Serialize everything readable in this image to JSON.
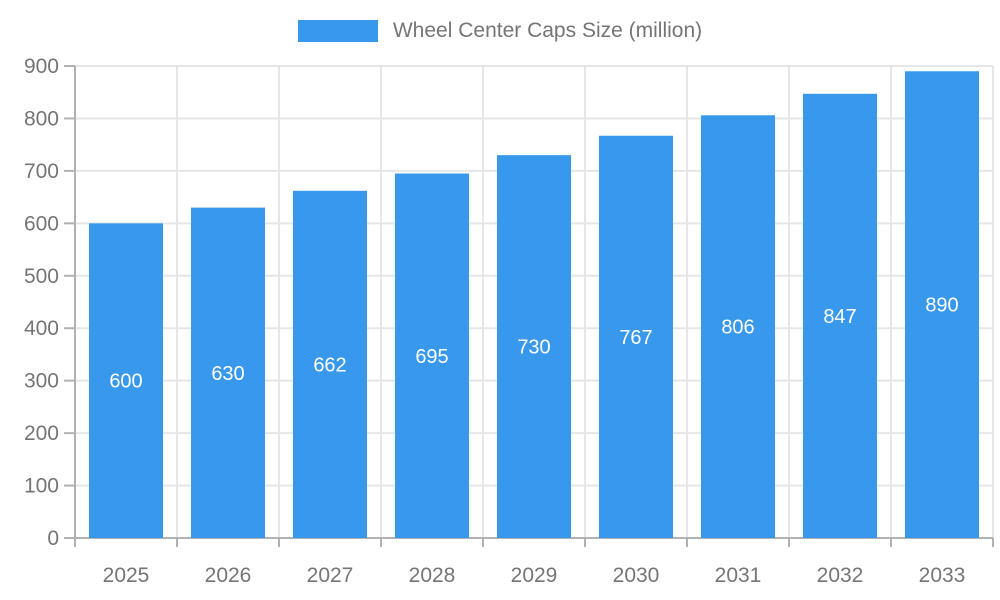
{
  "legend": {
    "label": "Wheel Center Caps Size (million)"
  },
  "colors": {
    "bar": "#3898EC",
    "grid": "#E6E6E6",
    "axis": "#B1B1B1",
    "tick": "#B1B1B1",
    "axis_text": "#757575",
    "bar_label_text": "#FFFFFF",
    "background": "#FFFFFF"
  },
  "chart_data": {
    "type": "bar",
    "title": "Wheel Center Caps Size (million)",
    "categories": [
      "2025",
      "2026",
      "2027",
      "2028",
      "2029",
      "2030",
      "2031",
      "2032",
      "2033"
    ],
    "values": [
      600,
      630,
      662,
      695,
      730,
      767,
      806,
      847,
      890
    ],
    "xlabel": "",
    "ylabel": "",
    "ylim": [
      0,
      900
    ],
    "y_ticks": [
      0,
      100,
      200,
      300,
      400,
      500,
      600,
      700,
      800,
      900
    ],
    "grid": "on",
    "legend_position": "top-center",
    "bar_value_labels": "centered-inside-white"
  }
}
